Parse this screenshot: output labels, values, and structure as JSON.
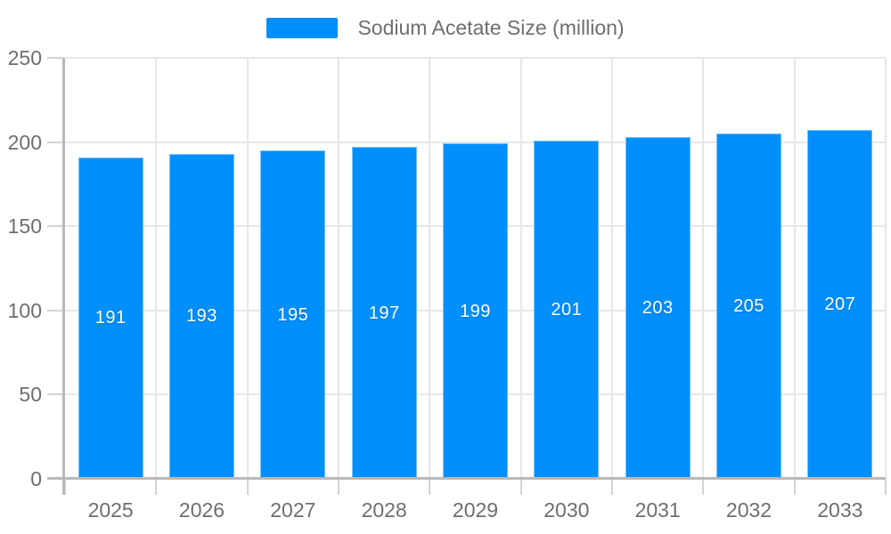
{
  "chart_data": {
    "type": "bar",
    "title": "Sodium Acetate Size (million)",
    "legend": {
      "label": "Sodium Acetate Size (million)",
      "position": "top"
    },
    "categories": [
      "2025",
      "2026",
      "2027",
      "2028",
      "2029",
      "2030",
      "2031",
      "2032",
      "2033"
    ],
    "values": [
      191,
      193,
      195,
      197,
      199,
      201,
      203,
      205,
      207
    ],
    "bar_labels": [
      "191",
      "193",
      "195",
      "197",
      "199",
      "201",
      "203",
      "205",
      "207"
    ],
    "xlabel": "",
    "ylabel": "",
    "ylim": [
      0,
      250
    ],
    "y_ticks": [
      0,
      50,
      100,
      150,
      200,
      250
    ],
    "grid": true,
    "colors": {
      "series": "#008FFB",
      "bar_label_text": "#ffffff",
      "axis_label_text": "#6e6e6e",
      "legend_text": "#6e6e6e",
      "gridline": "#e7e7e7",
      "axis_line": "#b9b9b9",
      "tick": "#d4d4d4",
      "background": "#ffffff"
    }
  }
}
